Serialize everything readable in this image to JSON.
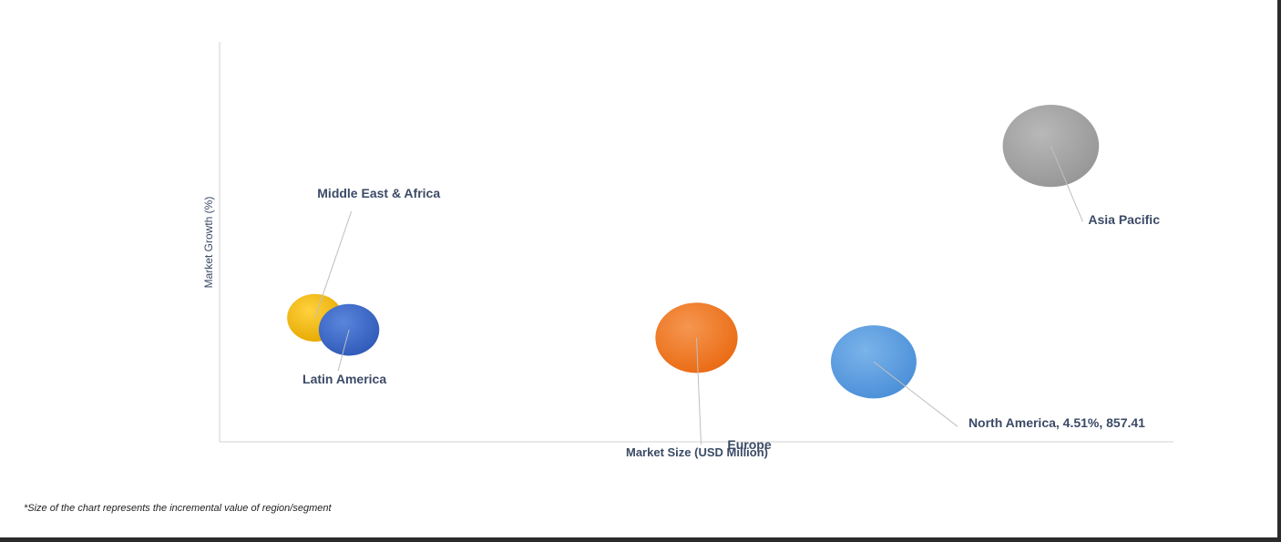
{
  "chart_data": {
    "type": "bubble",
    "title": "",
    "xlabel": "Market Size (USD Million)",
    "ylabel": "Market Growth (%)",
    "grid": false,
    "legend": "none",
    "series": [
      {
        "name": "Middle East & Africa",
        "label": "Middle East & Africa",
        "x": 70,
        "y": 3.55,
        "size": 0.55,
        "color": "#f2b800"
      },
      {
        "name": "Latin America",
        "label": "Latin America",
        "x": 95,
        "y": 3.4,
        "size": 0.65,
        "color": "#3a6bc9"
      },
      {
        "name": "Europe",
        "label": "Europe",
        "x": 350,
        "y": 3.3,
        "size": 1.2,
        "color": "#ef7a26"
      },
      {
        "name": "North America",
        "label": "North America, 4.51%, 857.41",
        "x": 480,
        "y": 3.0,
        "size": 1.3,
        "color": "#5b9ee0"
      },
      {
        "name": "Asia Pacific",
        "label": "Asia Pacific",
        "x": 610,
        "y": 5.7,
        "size": 1.9,
        "color": "#a6a6a6"
      }
    ]
  },
  "footnote": "*Size of the chart represents the incremental value of region/segment"
}
